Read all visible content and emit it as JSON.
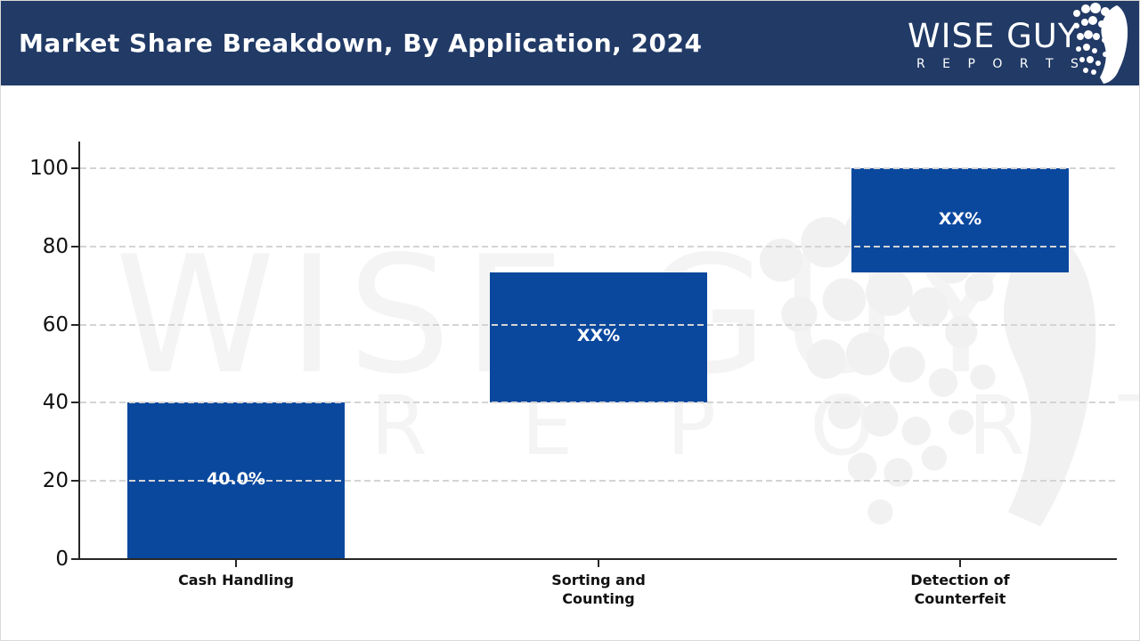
{
  "header": {
    "title": "Market Share Breakdown, By Application, 2024",
    "logo": {
      "wordmark": "WISE GUY",
      "sub": "R E P O R T S",
      "face_icon": "dotted-head-profile"
    }
  },
  "watermark": {
    "wordmark": "WISE GUY",
    "sub": "R E P O R T S",
    "face_icon": "dotted-head-profile"
  },
  "chart_data": {
    "type": "bar",
    "subtype": "stacked-waterfall-ranges",
    "title": "Market Share Breakdown, By Application, 2024",
    "categories": [
      [
        "Cash Handling"
      ],
      [
        "Sorting and",
        "Counting"
      ],
      [
        "Detection of",
        "Counterfeit"
      ]
    ],
    "bars": [
      {
        "category": "Cash Handling",
        "start": 0,
        "end": 40,
        "label": "40.0%"
      },
      {
        "category": "Sorting and Counting",
        "start": 40,
        "end": 73.3,
        "label": "XX%"
      },
      {
        "category": "Detection of Counterfeit",
        "start": 73.3,
        "end": 100,
        "label": "XX%"
      }
    ],
    "yticks": [
      0,
      20,
      40,
      60,
      80,
      100
    ],
    "ylim": [
      0,
      100
    ],
    "xlabel": "",
    "ylabel": "",
    "legend": "none",
    "grid": "horizontal-dashed"
  },
  "colors": {
    "header_bg": "#213a66",
    "bar": "#0a489e",
    "grid": "#d4d4d4",
    "axis": "#262626",
    "page_border": "#d9d9d9",
    "watermark": "#f4f4f4",
    "title_text": "#ffffff",
    "bar_label_text": "#ffffff",
    "tick_text": "#111111"
  }
}
